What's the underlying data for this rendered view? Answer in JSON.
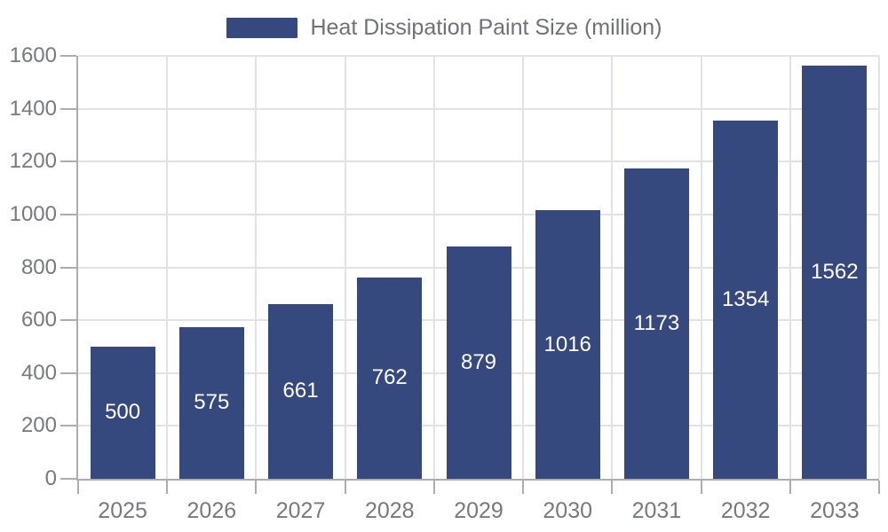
{
  "legend": {
    "label": "Heat Dissipation Paint Size (million)"
  },
  "colors": {
    "bar": "#35497E",
    "bar_label": "#FFFFFF",
    "axis_line": "#AAADB2",
    "grid_line": "#E2E2E6",
    "tick_label": "#76797E",
    "legend_text": "#6E7179"
  },
  "chart_data": {
    "type": "bar",
    "title": "Heat Dissipation Paint Size (million)",
    "categories": [
      "2025",
      "2026",
      "2027",
      "2028",
      "2029",
      "2030",
      "2031",
      "2032",
      "2033"
    ],
    "values": [
      500,
      575,
      661,
      762,
      879,
      1016,
      1173,
      1354,
      1562
    ],
    "series_name": "Heat Dissipation Paint Size (million)",
    "xlabel": "",
    "ylabel": "",
    "ylim": [
      0,
      1600
    ],
    "yticks": [
      0,
      200,
      400,
      600,
      800,
      1000,
      1200,
      1400,
      1600
    ],
    "grid": true,
    "grid_vertical_at_category_boundaries": true,
    "bar_labels_inside": true,
    "legend_position": "top-center"
  }
}
